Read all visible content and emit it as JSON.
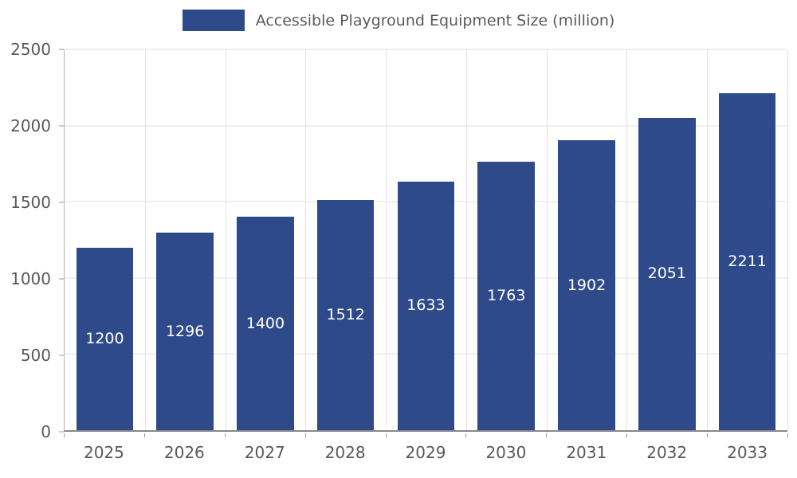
{
  "chart_data": {
    "type": "bar",
    "title": "Accessible Playground Equipment Size (million)",
    "categories": [
      "2025",
      "2026",
      "2027",
      "2028",
      "2029",
      "2030",
      "2031",
      "2032",
      "2033"
    ],
    "values": [
      1200,
      1296,
      1400,
      1512,
      1633,
      1763,
      1902,
      2051,
      2211
    ],
    "xlabel": "",
    "ylabel": "",
    "ylim": [
      0,
      2500
    ],
    "yticks": [
      0,
      500,
      1000,
      1500,
      2000,
      2500
    ],
    "grid": true,
    "legend_position": "top",
    "value_labels": "inside-center",
    "colors": {
      "bar": "#2f4a8a",
      "value_label": "#ffffff",
      "axis_text": "#595959",
      "gridline": "#e2e2e2",
      "axis_line": "#8a8a8a"
    }
  }
}
